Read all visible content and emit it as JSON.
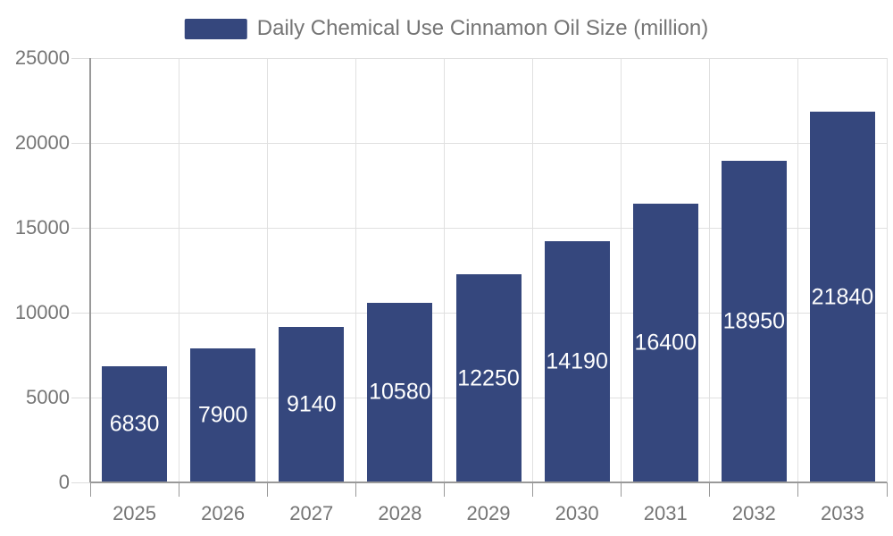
{
  "legend": {
    "label": "Daily Chemical Use Cinnamon Oil Size (million)"
  },
  "chart_data": {
    "type": "bar",
    "title": "Daily Chemical Use Cinnamon Oil Size (million)",
    "categories": [
      "2025",
      "2026",
      "2027",
      "2028",
      "2029",
      "2030",
      "2031",
      "2032",
      "2033"
    ],
    "series": [
      {
        "name": "Daily Chemical Use Cinnamon Oil Size (million)",
        "values": [
          6830,
          7900,
          9140,
          10580,
          12250,
          14190,
          16400,
          18950,
          21840
        ]
      }
    ],
    "values": [
      6830,
      7900,
      9140,
      10580,
      12250,
      14190,
      16400,
      18950,
      21840
    ],
    "xlabel": "",
    "ylabel": "",
    "ylim": [
      0,
      25000
    ],
    "yticks": [
      0,
      5000,
      10000,
      15000,
      20000,
      25000
    ],
    "grid": true,
    "legend_position": "top-center",
    "bar_labels_inside": true,
    "colors": {
      "bar": "#35477D",
      "bar_label": "#FFFFFF",
      "axis_text": "#757575",
      "legend_text": "#757575",
      "axis_line": "#999999",
      "gridline": "#E0E0E0"
    }
  }
}
